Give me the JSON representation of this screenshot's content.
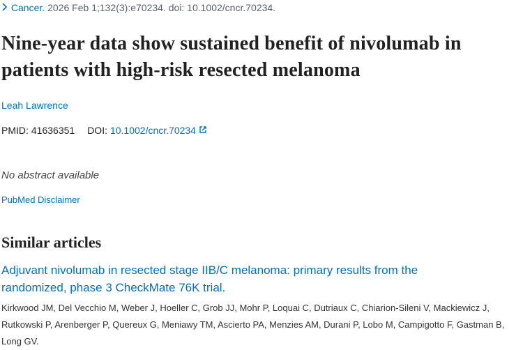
{
  "citation": {
    "journal": "Cancer.",
    "details": "2026 Feb 1;132(3):e70234. doi: 10.1002/cncr.70234."
  },
  "title": "Nine-year data show sustained benefit of nivolumab in patients with high-risk resected melanoma",
  "author": "Leah Lawrence",
  "ids": {
    "pmid_label": "PMID:",
    "pmid": "41636351",
    "doi_label": "DOI:",
    "doi": "10.1002/cncr.70234"
  },
  "abstract_note": "No abstract available",
  "disclaimer": "PubMed Disclaimer",
  "similar": {
    "heading": "Similar articles",
    "articles": [
      {
        "title": "Adjuvant nivolumab in resected stage IIB/C melanoma: primary results from the randomized, phase 3 CheckMate 76K trial.",
        "authors": "Kirkwood JM, Del Vecchio M, Weber J, Hoeller C, Grob JJ, Mohr P, Loquai C, Dutriaux C, Chiarion-Sileni V, Mackiewicz J, Rutkowski P, Arenberger P, Quereux G, Meniawy TM, Ascierto PA, Menzies AM, Durani P, Lobo M, Campigotto F, Gastman B, Long GV."
      }
    ]
  }
}
